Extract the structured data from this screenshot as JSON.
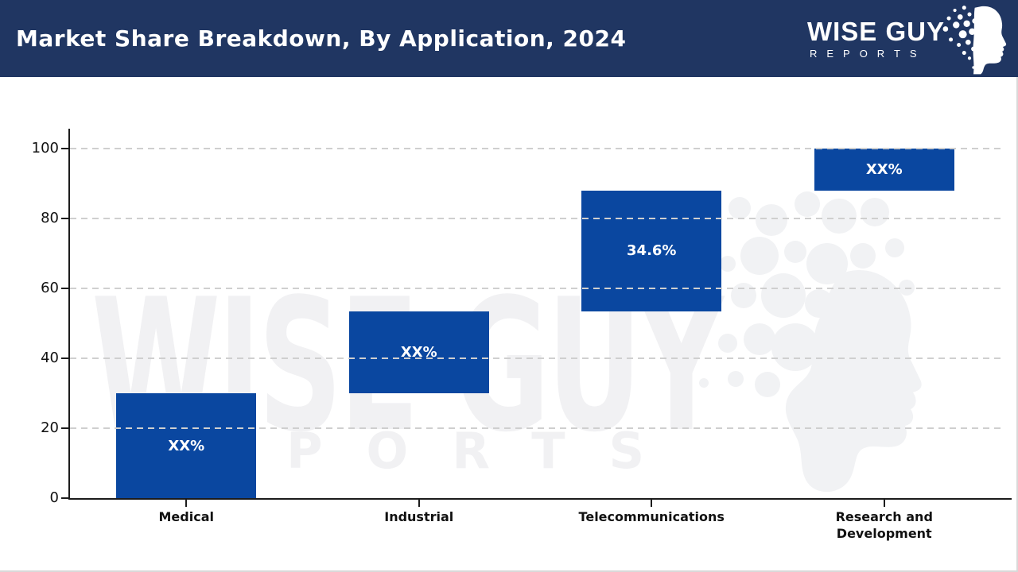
{
  "header": {
    "title": "Market Share Breakdown, By Application, 2024",
    "brand": {
      "line1": "WISE GUY",
      "line2": "REPORTS"
    }
  },
  "watermark": {
    "line1": "WISE GUY",
    "line2": "REPORTS"
  },
  "colors": {
    "header_bg": "#203662",
    "bar": "#0a47a0",
    "bar_label": "#ffffff",
    "grid": "#cfcfcf",
    "axis": "#1c1c1c",
    "watermark": "#f1f2f4"
  },
  "chart_data": {
    "type": "bar",
    "subtype": "waterfall-floating-bars",
    "title": "Market Share Breakdown, By Application, 2024",
    "unit": "%",
    "categories": [
      "Medical",
      "Industrial",
      "Telecommunications",
      "Research and Development"
    ],
    "xtick_labels": [
      "Medical",
      "Industrial",
      "Telecommunications",
      "Research and\nDevelopment"
    ],
    "segments": [
      {
        "category": "Medical",
        "start": 0,
        "end": 30,
        "label": "XX%"
      },
      {
        "category": "Industrial",
        "start": 30,
        "end": 53.4,
        "label": "XX%"
      },
      {
        "category": "Telecommunications",
        "start": 53.4,
        "end": 88,
        "label": "34.6%"
      },
      {
        "category": "Research and Development",
        "start": 88,
        "end": 100,
        "label": "XX%"
      }
    ],
    "yticks": [
      0,
      20,
      40,
      60,
      80,
      100
    ],
    "ylim": [
      0,
      100
    ],
    "grid": "horizontal-dashed",
    "legend": "none"
  }
}
